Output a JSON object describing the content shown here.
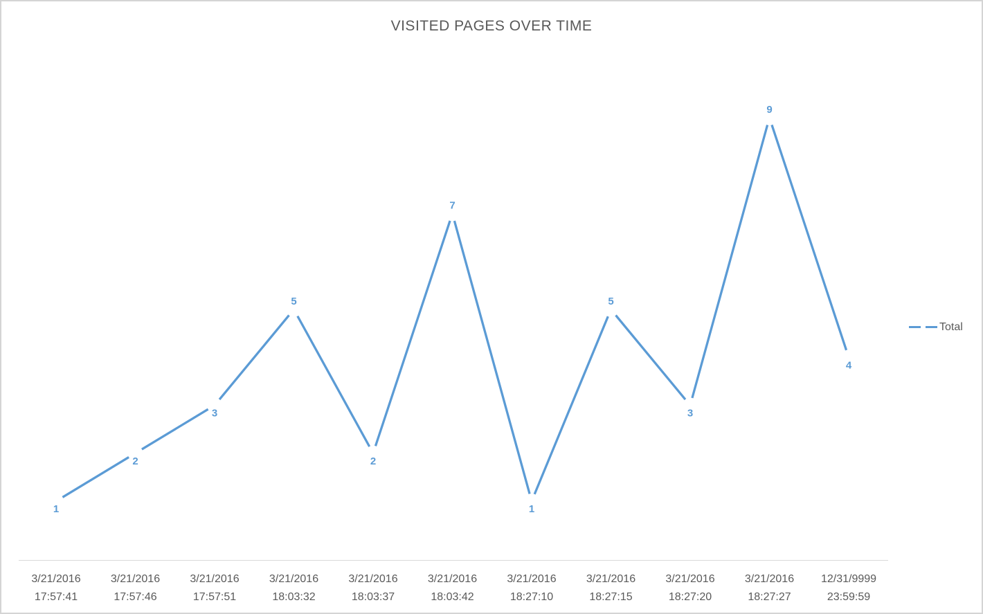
{
  "title": "VISITED PAGES OVER TIME",
  "chart_data": {
    "type": "line",
    "title": "VISITED PAGES OVER TIME",
    "categories": [
      "3/21/2016 17:57:41",
      "3/21/2016 17:57:46",
      "3/21/2016 17:57:51",
      "3/21/2016 18:03:32",
      "3/21/2016 18:03:37",
      "3/21/2016 18:03:42",
      "3/21/2016 18:27:10",
      "3/21/2016 18:27:15",
      "3/21/2016 18:27:20",
      "3/21/2016 18:27:27",
      "12/31/9999 23:59:59"
    ],
    "series": [
      {
        "name": "Total",
        "values": [
          1,
          2,
          3,
          5,
          2,
          7,
          1,
          5,
          3,
          9,
          4
        ],
        "color": "#5B9BD5",
        "line_style": "dashed",
        "data_labels": true
      }
    ],
    "xlabel": "",
    "ylabel": "",
    "ylim": [
      0,
      10
    ],
    "grid": false,
    "legend_position": "right",
    "colors": {
      "series": "#5B9BD5",
      "text": "#595959",
      "axis_line": "#D9D9D9"
    }
  }
}
